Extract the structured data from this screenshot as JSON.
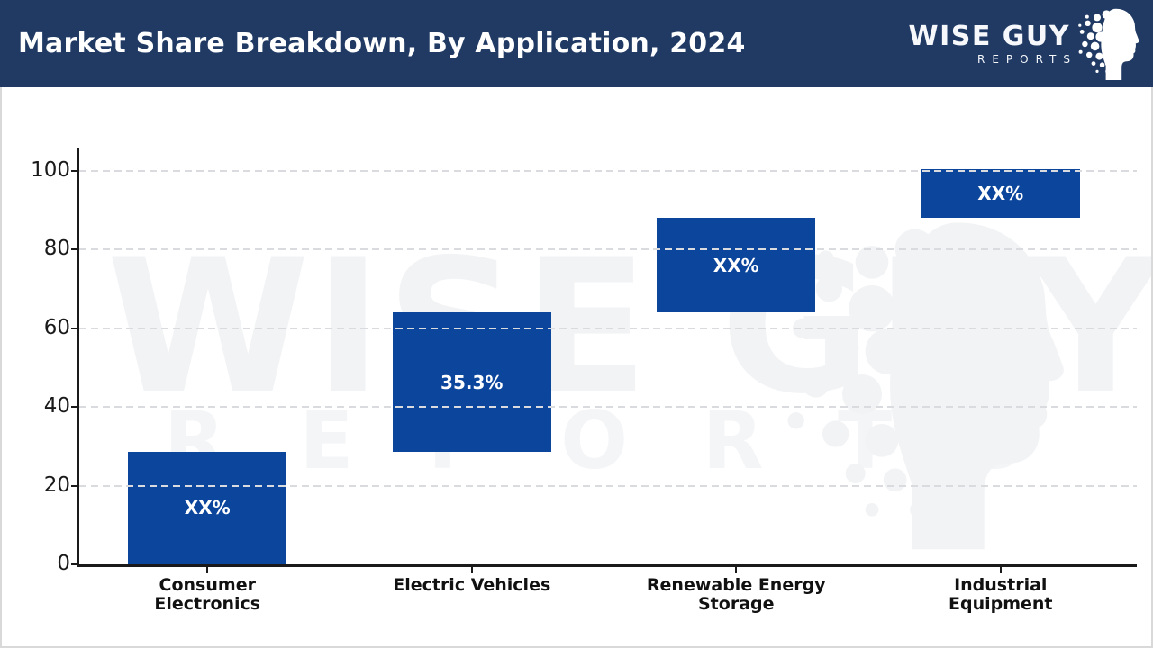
{
  "header": {
    "title": "Market Share Breakdown, By Application, 2024",
    "logo_line1": "WISE GUY",
    "logo_line2": "REPORTS"
  },
  "watermark": {
    "line1": "WISE GUY",
    "line2": "R E P O R T S"
  },
  "colors": {
    "header_bg": "#203a64",
    "bar": "#0c459c",
    "grid": "#d9dbde",
    "axis": "#1a1a1a",
    "frame_border": "#d9d9d9",
    "watermark": "#f2f3f5",
    "bar_label": "#ffffff"
  },
  "chart_data": {
    "type": "bar",
    "subtype": "floating-waterfall",
    "title": "Market Share Breakdown, By Application, 2024",
    "categories": [
      [
        "Consumer",
        "Electronics"
      ],
      [
        "Electric Vehicles"
      ],
      [
        "Renewable Energy",
        "Storage"
      ],
      [
        "Industrial",
        "Equipment"
      ]
    ],
    "segments": [
      {
        "category": "Consumer Electronics",
        "label": "XX%",
        "start": 0,
        "end": 28.6
      },
      {
        "category": "Electric Vehicles",
        "label": "35.3%",
        "start": 28.6,
        "end": 63.9
      },
      {
        "category": "Renewable Energy Storage",
        "label": "XX%",
        "start": 63.9,
        "end": 87.9
      },
      {
        "category": "Industrial Equipment",
        "label": "XX%",
        "start": 87.9,
        "end": 100.4
      }
    ],
    "yticks": [
      0,
      20,
      40,
      60,
      80,
      100
    ],
    "ylim": [
      0,
      105.8
    ],
    "xlabel": "",
    "ylabel": "",
    "grid": "horizontal-dashed",
    "gridlines_above_bars": true,
    "legend": "none"
  }
}
